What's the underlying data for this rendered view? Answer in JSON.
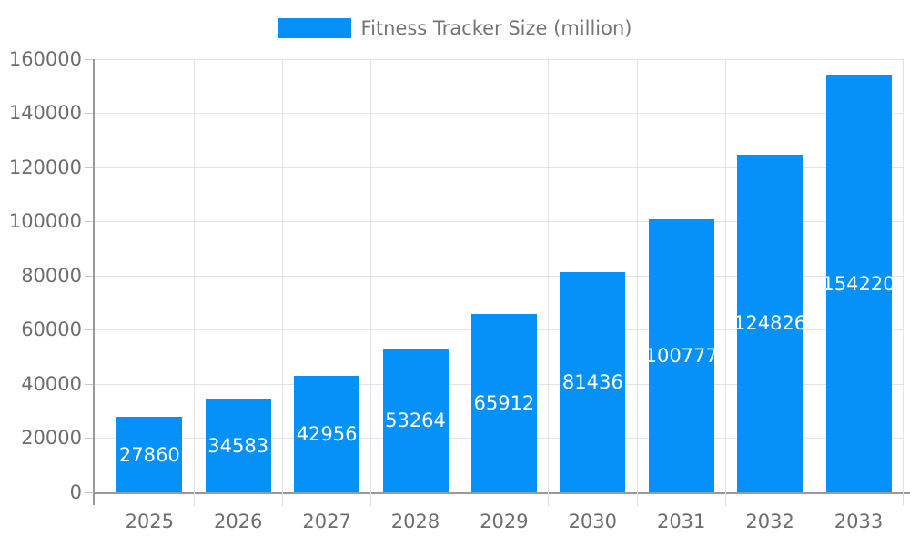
{
  "legend": {
    "label": "Fitness Tracker Size (million)",
    "swatch_color": "#0691f8"
  },
  "chart_data": {
    "type": "bar",
    "title": "Fitness Tracker Size (million)",
    "series_name": "Fitness Tracker Size (million)",
    "categories": [
      "2025",
      "2026",
      "2027",
      "2028",
      "2029",
      "2030",
      "2031",
      "2032",
      "2033"
    ],
    "values": [
      27860,
      34583,
      42956,
      53264,
      65912,
      81436,
      100777,
      124826,
      154220
    ],
    "value_labels": [
      "27860",
      "34583",
      "42956",
      "53264",
      "65912",
      "81436",
      "100777",
      "124826",
      "154220"
    ],
    "xlabel": "",
    "ylabel": "",
    "ylim": [
      0,
      160000
    ],
    "ytick_interval": 20000,
    "ytick_labels": [
      "0",
      "20000",
      "40000",
      "60000",
      "80000",
      "100000",
      "120000",
      "140000",
      "160000"
    ],
    "grid": true,
    "legend_position": "top-center",
    "value_label_position": "inside-center",
    "bar_color": "#0691f8",
    "bar_label_color": "#ffffff"
  },
  "colors": {
    "background": "#ffffff",
    "bar": "#0691f8",
    "grid_line": "#e3e3e3",
    "tick_dash": "#c7c7c7",
    "below_axis_tick": "#dcdcdc",
    "axis_line": "#9a9a9a",
    "tick_text": "#6e6e6e",
    "legend_text": "#757575"
  }
}
